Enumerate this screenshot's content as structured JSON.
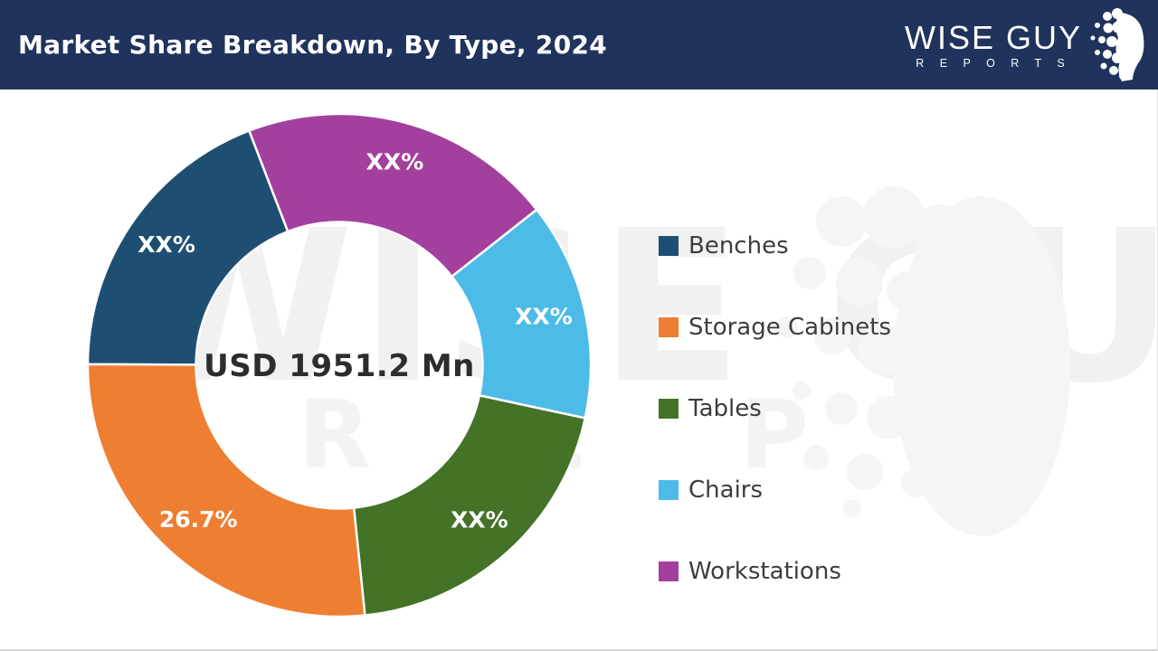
{
  "header": {
    "title": "Market Share Breakdown, By Type, 2024",
    "bg_color": "#20335c",
    "logo": {
      "name": "WISE GUY",
      "sub": "R E P O R T S"
    }
  },
  "watermark": {
    "line1": "WISE GUY",
    "line2": "R E P O R T S"
  },
  "chart_data": {
    "type": "pie",
    "subtype": "donut",
    "title": "Market Share Breakdown, By Type, 2024",
    "center_text": "USD 1951.2 Mn",
    "legend_position": "right",
    "start_angle_deg": 111,
    "direction": "counterclockwise",
    "inner_radius_ratio": 0.57,
    "slices": [
      {
        "label": "Benches",
        "value_pct": 19.1,
        "display_label": "XX%",
        "color": "#1f4e73"
      },
      {
        "label": "Storage Cabinets",
        "value_pct": 26.7,
        "display_label": "26.7%",
        "color": "#ee7e32"
      },
      {
        "label": "Tables",
        "value_pct": 20.0,
        "display_label": "XX%",
        "color": "#447328"
      },
      {
        "label": "Chairs",
        "value_pct": 14.0,
        "display_label": "XX%",
        "color": "#4dbbe8"
      },
      {
        "label": "Workstations",
        "value_pct": 20.2,
        "display_label": "XX%",
        "color": "#a3409e"
      }
    ]
  }
}
